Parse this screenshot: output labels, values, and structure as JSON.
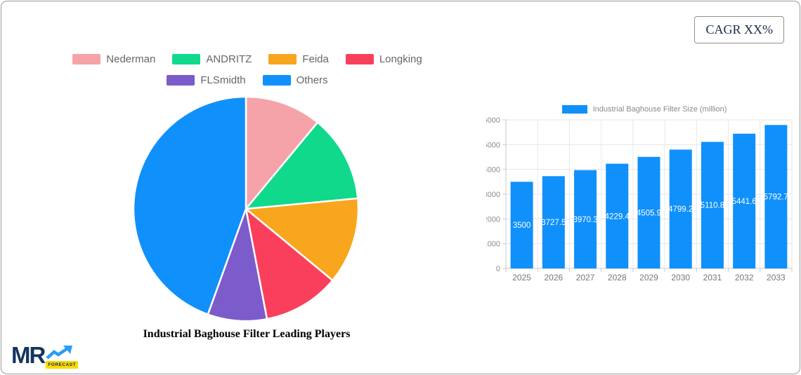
{
  "cagr_badge": "CAGR XX%",
  "pie_section": {
    "title": "Industrial Baghouse Filter Leading Players",
    "legend": [
      {
        "label": "Nederman",
        "color": "#F5A3A8"
      },
      {
        "label": "ANDRITZ",
        "color": "#10D98C"
      },
      {
        "label": "Feida",
        "color": "#F8A61D"
      },
      {
        "label": "Longking",
        "color": "#F93F5C"
      },
      {
        "label": "FLSmidth",
        "color": "#7C5BCB"
      },
      {
        "label": "Others",
        "color": "#1090FA"
      }
    ]
  },
  "bar_section": {
    "legend_label": "Industrial Baghouse Filter Size (million)",
    "bar_color": "#1090FA"
  },
  "chart_data": [
    {
      "type": "pie",
      "title": "Industrial Baghouse Filter Leading Players",
      "labels": [
        "Nederman",
        "ANDRITZ",
        "Feida",
        "Longking",
        "FLSmidth",
        "Others"
      ],
      "values": [
        11,
        12.5,
        12.5,
        11,
        8.5,
        44.5
      ],
      "unit": "percent-share (estimated from slice angles)",
      "colors": [
        "#F5A3A8",
        "#10D98C",
        "#F8A61D",
        "#F93F5C",
        "#7C5BCB",
        "#1090FA"
      ],
      "start_angle_deg": 0,
      "direction": "clockwise",
      "legend_position": "top"
    },
    {
      "type": "bar",
      "legend": "Industrial Baghouse Filter Size (million)",
      "categories": [
        "2025",
        "2026",
        "2027",
        "2028",
        "2029",
        "2030",
        "2031",
        "2032",
        "2033"
      ],
      "values": [
        3500,
        3727.5,
        3970.3,
        4229.4,
        4505.9,
        4799.2,
        5110.8,
        5441.6,
        5792.7
      ],
      "ylim": [
        0,
        6000
      ],
      "ytick_step": 1000,
      "grid": true,
      "bar_color": "#1090FA",
      "value_labels": [
        "3500",
        "3727.5",
        "3970.3",
        "4229.4",
        "4505.9",
        "4799.2",
        "5110.8",
        "5441.6",
        "5792.7"
      ],
      "value_label_color": "#FFFFFF",
      "axis_label_color": "#8a8a8a"
    }
  ],
  "logo": {
    "text": "MR",
    "badge": "FORECAST"
  }
}
